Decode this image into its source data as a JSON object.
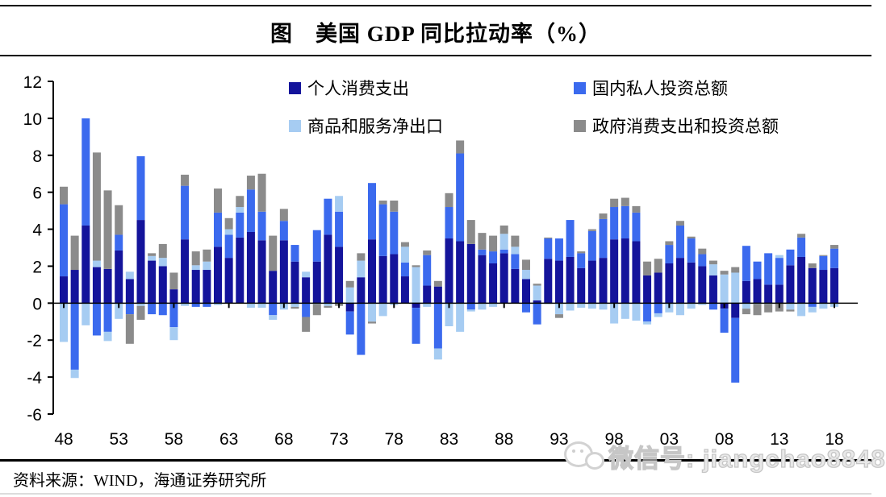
{
  "figure": {
    "source": "资料来源：WIND，海通证券研究所",
    "watermark": "微信号: jiangchao8848",
    "wechat_icon_color": "#d2d2d2"
  },
  "chart_data": {
    "type": "bar",
    "stacked": true,
    "title": "图　美国 GDP 同比拉动率（%）",
    "xlabel": "",
    "ylabel": "",
    "ylim": [
      -6,
      12
    ],
    "yticks": [
      12,
      10,
      8,
      6,
      4,
      2,
      0,
      -2,
      -4,
      -6
    ],
    "xticks": [
      "48",
      "53",
      "58",
      "63",
      "68",
      "73",
      "78",
      "83",
      "88",
      "93",
      "98",
      "03",
      "08",
      "13",
      "18"
    ],
    "xtick_year_interval": 5,
    "grid": false,
    "legend_position": "top-inside",
    "years": [
      1948,
      1949,
      1950,
      1951,
      1952,
      1953,
      1954,
      1955,
      1956,
      1957,
      1958,
      1959,
      1960,
      1961,
      1962,
      1963,
      1964,
      1965,
      1966,
      1967,
      1968,
      1969,
      1970,
      1971,
      1972,
      1973,
      1974,
      1975,
      1976,
      1977,
      1978,
      1979,
      1980,
      1981,
      1982,
      1983,
      1984,
      1985,
      1986,
      1987,
      1988,
      1989,
      1990,
      1991,
      1992,
      1993,
      1994,
      1995,
      1996,
      1997,
      1998,
      1999,
      2000,
      2001,
      2002,
      2003,
      2004,
      2005,
      2006,
      2007,
      2008,
      2009,
      2010,
      2011,
      2012,
      2013,
      2014,
      2015,
      2016,
      2017,
      2018
    ],
    "series": [
      {
        "name": "个人消费支出",
        "color": "#14149B",
        "values": [
          1.45,
          1.8,
          4.2,
          1.95,
          1.85,
          2.85,
          1.3,
          4.5,
          2.3,
          2.0,
          0.75,
          3.45,
          1.8,
          1.8,
          3.05,
          2.45,
          3.55,
          3.85,
          3.4,
          1.75,
          3.4,
          2.25,
          1.4,
          2.25,
          3.7,
          3.05,
          -0.45,
          1.4,
          3.45,
          2.55,
          2.65,
          1.45,
          -0.25,
          0.95,
          0.9,
          3.5,
          3.35,
          3.2,
          2.6,
          2.15,
          2.7,
          1.85,
          1.3,
          0.15,
          2.4,
          2.3,
          2.5,
          1.9,
          2.3,
          2.45,
          3.45,
          3.5,
          3.35,
          1.5,
          1.65,
          2.15,
          2.45,
          2.2,
          2.0,
          1.5,
          -0.3,
          -0.8,
          1.2,
          1.3,
          1.0,
          1.0,
          2.05,
          2.5,
          1.9,
          1.8,
          1.9
        ]
      },
      {
        "name": "国内私人投资总额",
        "color": "#3B6AEE",
        "values": [
          3.9,
          -3.6,
          5.8,
          -1.75,
          -1.55,
          0.85,
          -0.6,
          3.45,
          -0.6,
          -0.65,
          -1.3,
          2.9,
          -0.2,
          -0.2,
          1.85,
          1.25,
          1.35,
          2.3,
          1.55,
          -0.65,
          1.05,
          0.9,
          -0.75,
          1.7,
          1.95,
          1.9,
          -1.25,
          -2.8,
          3.05,
          2.8,
          2.3,
          0.75,
          -1.95,
          1.65,
          -2.45,
          1.7,
          4.75,
          -0.35,
          0.3,
          0.65,
          0.2,
          0.8,
          -0.5,
          -1.15,
          1.1,
          1.2,
          2.0,
          0.8,
          1.6,
          2.1,
          1.75,
          1.75,
          1.55,
          -1.0,
          -0.55,
          1.0,
          1.75,
          1.3,
          0.65,
          -0.35,
          -1.3,
          -3.5,
          1.9,
          0.95,
          1.7,
          1.45,
          0.85,
          1.05,
          -0.2,
          0.75,
          1.05
        ]
      },
      {
        "name": "商品和服务净出口",
        "color": "#A6CCF2",
        "values": [
          -2.1,
          -0.45,
          -1.2,
          0.35,
          -0.5,
          -0.85,
          0.4,
          -0.15,
          0.25,
          0.45,
          -0.7,
          -0.15,
          0.25,
          0.45,
          -0.1,
          0.3,
          0.3,
          -0.25,
          -0.25,
          -0.25,
          -0.35,
          -0.2,
          0.3,
          -0.05,
          -0.15,
          0.85,
          0.85,
          0.9,
          -1.0,
          -0.7,
          -0.1,
          0.85,
          1.95,
          -0.2,
          -0.6,
          -1.25,
          -1.55,
          -0.1,
          -0.35,
          -0.2,
          0.85,
          0.4,
          0.5,
          0.8,
          -0.05,
          -0.6,
          -0.4,
          -0.25,
          -0.3,
          -0.35,
          -1.1,
          -0.85,
          -0.95,
          -0.15,
          -0.2,
          -0.5,
          -0.65,
          -0.3,
          -0.1,
          0.6,
          1.55,
          1.65,
          -0.3,
          -0.05,
          -0.05,
          0.15,
          -0.35,
          -0.7,
          -0.3,
          -0.3,
          -0.2
        ]
      },
      {
        "name": "政府消费支出和投资总额",
        "color": "#8B8B8B",
        "values": [
          0.95,
          1.85,
          0.0,
          5.85,
          4.25,
          1.6,
          -1.6,
          -0.75,
          0.15,
          0.75,
          0.9,
          0.6,
          0.75,
          0.65,
          1.3,
          0.6,
          0.6,
          0.75,
          2.05,
          1.9,
          0.65,
          -0.1,
          -0.8,
          -0.6,
          -0.1,
          -0.15,
          0.35,
          0.4,
          -0.1,
          0.2,
          0.6,
          0.25,
          0.1,
          0.25,
          0.3,
          0.75,
          0.7,
          1.3,
          0.9,
          0.85,
          0.45,
          0.6,
          0.55,
          0.1,
          0.05,
          -0.2,
          0.0,
          0.1,
          0.1,
          0.3,
          0.45,
          0.45,
          0.35,
          0.75,
          0.75,
          0.2,
          0.25,
          0.1,
          0.3,
          0.2,
          0.2,
          0.3,
          -0.3,
          -0.6,
          -0.45,
          -0.45,
          -0.1,
          0.2,
          0.25,
          0.05,
          0.2
        ]
      }
    ]
  }
}
